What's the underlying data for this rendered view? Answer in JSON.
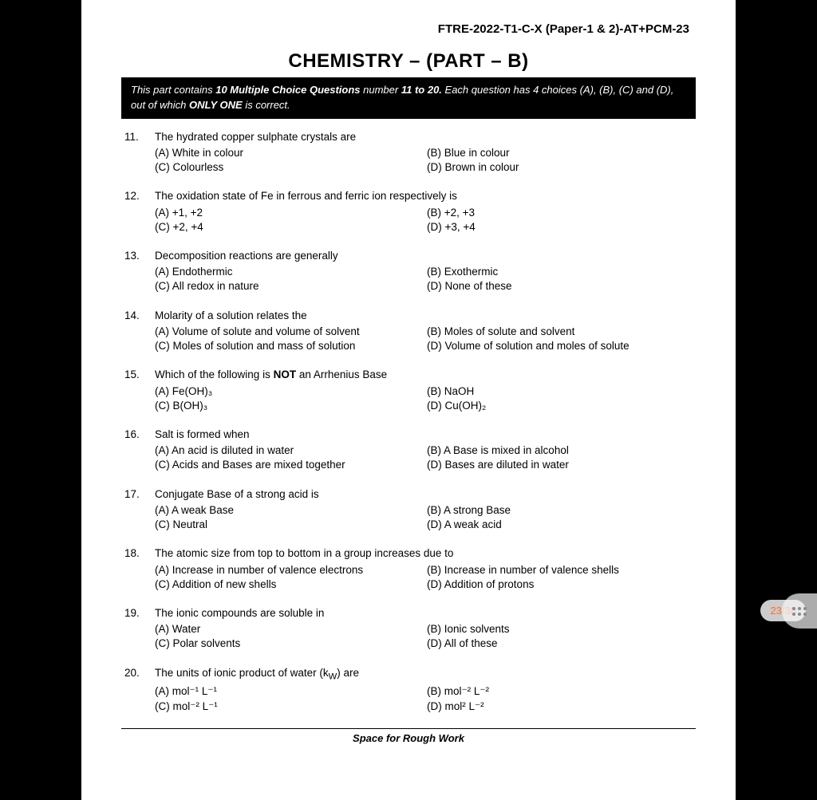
{
  "header_code": "FTRE-2022-T1-C-X (Paper-1 & 2)-AT+PCM-23",
  "title": "CHEMISTRY – (PART – B)",
  "instructions_html": "This part contains <span class='bold'>10 Multiple Choice Questions</span> number <span class='bold'>11 to 20.</span> Each question has 4 choices (A), (B), (C) and (D), out of which <span class='bold'>ONLY ONE</span> is correct.",
  "rough_work": "Space for Rough Work",
  "page_indicator": "23/38",
  "questions": [
    {
      "num": "11.",
      "text": "The hydrated copper sulphate crystals are",
      "options": [
        "(A) White in colour",
        "(B) Blue in colour",
        "(C) Colourless",
        "(D) Brown in colour"
      ]
    },
    {
      "num": "12.",
      "text": "The oxidation state of Fe in ferrous and ferric ion respectively is",
      "options": [
        "(A) +1, +2",
        "(B) +2, +3",
        "(C) +2, +4",
        "(D) +3, +4"
      ]
    },
    {
      "num": "13.",
      "text": "Decomposition reactions are generally",
      "options": [
        "(A) Endothermic",
        "(B) Exothermic",
        "(C) All redox in nature",
        "(D) None of these"
      ]
    },
    {
      "num": "14.",
      "text": "Molarity of a solution relates the",
      "options": [
        "(A) Volume of solute and volume of solvent",
        "(B) Moles of solute and solvent",
        "(C) Moles of solution and mass of solution",
        "(D) Volume of solution and moles of solute"
      ]
    },
    {
      "num": "15.",
      "text_html": "Which of the following is <b>NOT</b> an Arrhenius Base",
      "options_html": [
        "(A) Fe(OH)<span class='sub3'></span>",
        "(B) NaOH",
        "(C) B(OH)<span class='sub3'></span>",
        "(D) Cu(OH)<span class='sub2'></span>"
      ]
    },
    {
      "num": "16.",
      "text": "Salt is formed when",
      "options": [
        "(A) An acid is diluted in water",
        "(B) A Base is mixed in alcohol",
        "(C) Acids and Bases are mixed together",
        "(D) Bases are diluted in water"
      ]
    },
    {
      "num": "17.",
      "text": "Conjugate Base of a strong acid is",
      "options": [
        "(A) A weak Base",
        "(B) A strong Base",
        "(C) Neutral",
        "(D) A weak acid"
      ]
    },
    {
      "num": "18.",
      "text": "The atomic size from top to bottom in a group increases due to",
      "options": [
        "(A) Increase in number of valence electrons",
        "(B) Increase in number of valence shells",
        "(C) Addition of new shells",
        "(D) Addition of protons"
      ]
    },
    {
      "num": "19.",
      "text": "The ionic compounds are soluble in",
      "options": [
        "(A) Water",
        "(B) Ionic solvents",
        "(C) Polar solvents",
        "(D) All of these"
      ]
    },
    {
      "num": "20.",
      "text_html": "The units of ionic product of water (k<sub>W</sub>) are",
      "options_html": [
        "(A) mol<span class='supm1'></span> L<span class='supm1'></span>",
        "(B) mol<span class='supm2'></span> L<span class='supm2'></span>",
        "(C) mol<span class='supm2'></span> L<span class='supm1'></span>",
        "(D) mol<span class='sup2'></span> L<span class='supm2'></span>"
      ]
    }
  ],
  "colors": {
    "page_bg": "#ffffff",
    "body_bg": "#000000",
    "instruction_bg": "#000000",
    "instruction_fg": "#ffffff",
    "indicator_fg": "#ff6b35"
  }
}
